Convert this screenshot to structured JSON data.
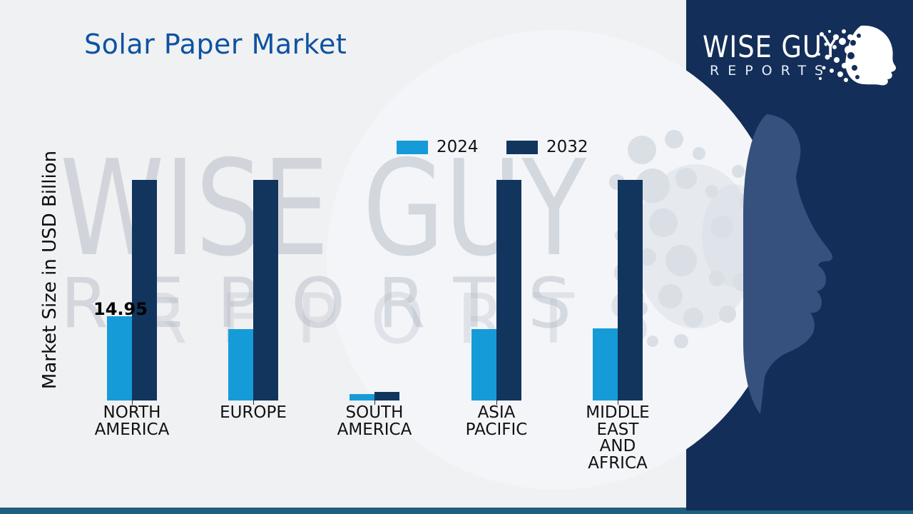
{
  "page": {
    "title": "Solar Paper Market",
    "background_color": "#f0f1f2",
    "title_color": "#0e52a0",
    "right_panel_color": "#132e58",
    "bottom_bar_color": "#1e5e81",
    "watermark_circle_color": "#f4f5f8",
    "face_silhouette_color": "#36517d"
  },
  "logo": {
    "wordmark": "WISE GUY",
    "subtitle": "REPORTS",
    "text_color": "#ffffff"
  },
  "watermark": {
    "line1": "WISE GUY",
    "line2": "REPORTS"
  },
  "annotation": {
    "value_label": "14.95"
  },
  "chart_data": {
    "type": "bar",
    "title": "Solar Paper Market",
    "xlabel": "",
    "ylabel": "Market Size in USD Billion",
    "ylim": [
      0,
      39.1
    ],
    "grid": false,
    "legend_position": "top-center",
    "categories": [
      {
        "id": "north-america",
        "label": "NORTH AMERICA",
        "lines": [
          "NORTH",
          "AMERICA"
        ]
      },
      {
        "id": "europe",
        "label": "EUROPE",
        "lines": [
          "EUROPE"
        ]
      },
      {
        "id": "south-america",
        "label": "SOUTH AMERICA",
        "lines": [
          "SOUTH",
          "AMERICA"
        ]
      },
      {
        "id": "asia-pacific",
        "label": "ASIA PACIFIC",
        "lines": [
          "ASIA",
          "PACIFIC"
        ]
      },
      {
        "id": "middle-east-and-africa",
        "label": "MIDDLE EAST AND AFRICA",
        "lines": [
          "MIDDLE",
          "EAST",
          "AND",
          "AFRICA"
        ]
      }
    ],
    "series": [
      {
        "name": "2024",
        "color": "#169bd9",
        "values": [
          14.95,
          12.7,
          1.1,
          12.7,
          12.8
        ]
      },
      {
        "name": "2032",
        "color": "#12355e",
        "values": [
          39.1,
          39.1,
          1.5,
          39.1,
          39.1
        ]
      }
    ],
    "data_labels": [
      {
        "series": "2024",
        "category": "NORTH AMERICA",
        "text": "14.95"
      }
    ]
  }
}
